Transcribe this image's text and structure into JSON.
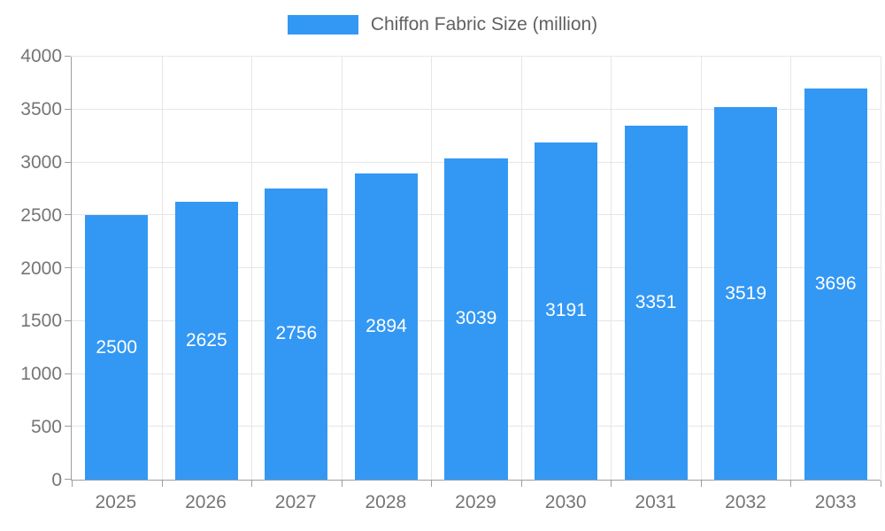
{
  "legend": {
    "label": "Chiffon Fabric Size (million)"
  },
  "colors": {
    "bar": "#3398f4",
    "grid": "#e6e6e6",
    "axis": "#9e9e9e",
    "tick_text": "#757575",
    "legend_text": "#616161",
    "value_text": "#ffffff",
    "background": "#ffffff"
  },
  "chart_data": {
    "type": "bar",
    "title": "Chiffon Fabric Size (million)",
    "categories": [
      "2025",
      "2026",
      "2027",
      "2028",
      "2029",
      "2030",
      "2031",
      "2032",
      "2033"
    ],
    "values": [
      2500,
      2625,
      2756,
      2894,
      3039,
      3191,
      3351,
      3519,
      3696
    ],
    "xlabel": "",
    "ylabel": "",
    "ylim": [
      0,
      4000
    ],
    "yticks": [
      0,
      500,
      1000,
      1500,
      2000,
      2500,
      3000,
      3500,
      4000
    ],
    "grid": true,
    "legend_position": "top",
    "value_labels": "inside-center"
  }
}
